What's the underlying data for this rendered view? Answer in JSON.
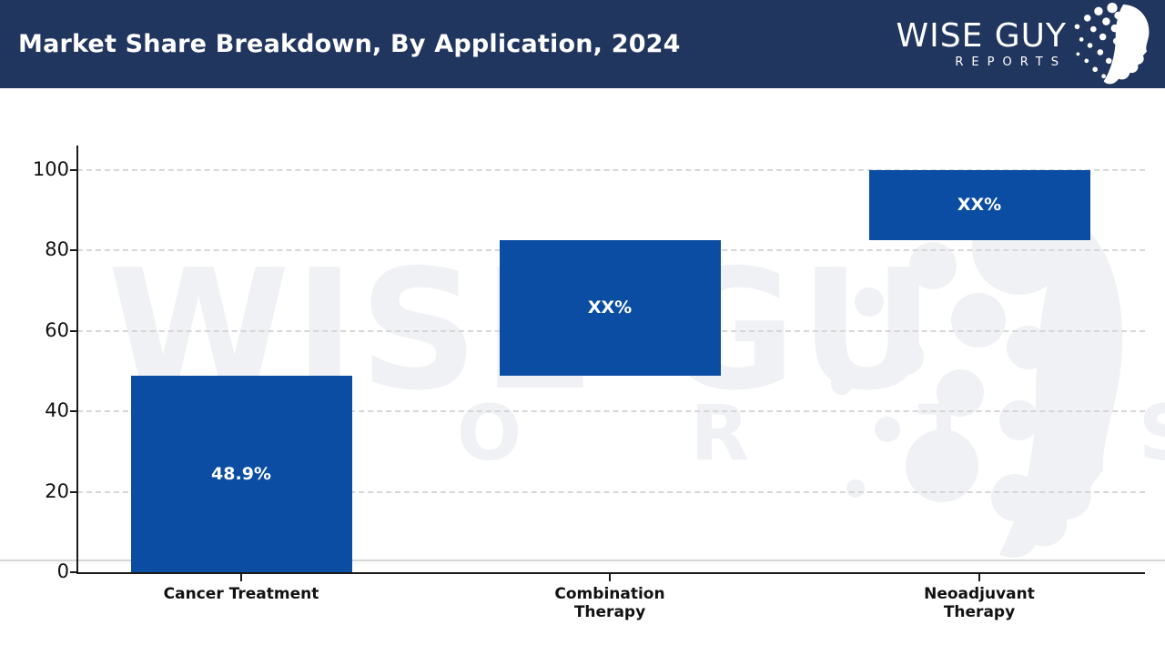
{
  "header": {
    "title": "Market Share Breakdown, By Application, 2024",
    "logo": {
      "line1": "WISE GUY",
      "line2": "REPORTS",
      "head_icon": "dotted-face-profile"
    }
  },
  "watermark": {
    "line1": "WISE GU",
    "line2": "P O R T S",
    "head_icon": "dotted-face-profile"
  },
  "colors": {
    "header_bg": "#21365f",
    "bar": "#0b4da2",
    "bar_label": "#ffffff",
    "gridline": "#d7d7d7",
    "axis": "#1a1a1a",
    "tick_text": "#111111",
    "watermark": "#f0f1f4"
  },
  "chart_data": {
    "type": "bar",
    "variant": "waterfall",
    "title": "Market Share Breakdown, By Application, 2024",
    "categories": [
      {
        "lines": [
          "Cancer Treatment"
        ]
      },
      {
        "lines": [
          "Combination",
          "Therapy"
        ]
      },
      {
        "lines": [
          "Neoadjuvant",
          "Therapy"
        ]
      }
    ],
    "segments": [
      {
        "category": "Cancer Treatment",
        "start": 0,
        "end": 48.9,
        "label": "48.9%"
      },
      {
        "category": "Combination Therapy",
        "start": 48.9,
        "end": 82.6,
        "label": "XX%"
      },
      {
        "category": "Neoadjuvant Therapy",
        "start": 82.6,
        "end": 100,
        "label": "XX%"
      }
    ],
    "ylim": [
      0,
      100
    ],
    "yticks": [
      0,
      20,
      40,
      60,
      80,
      100
    ],
    "grid": {
      "horizontal": true,
      "style": "dashed"
    },
    "legend": "none"
  }
}
